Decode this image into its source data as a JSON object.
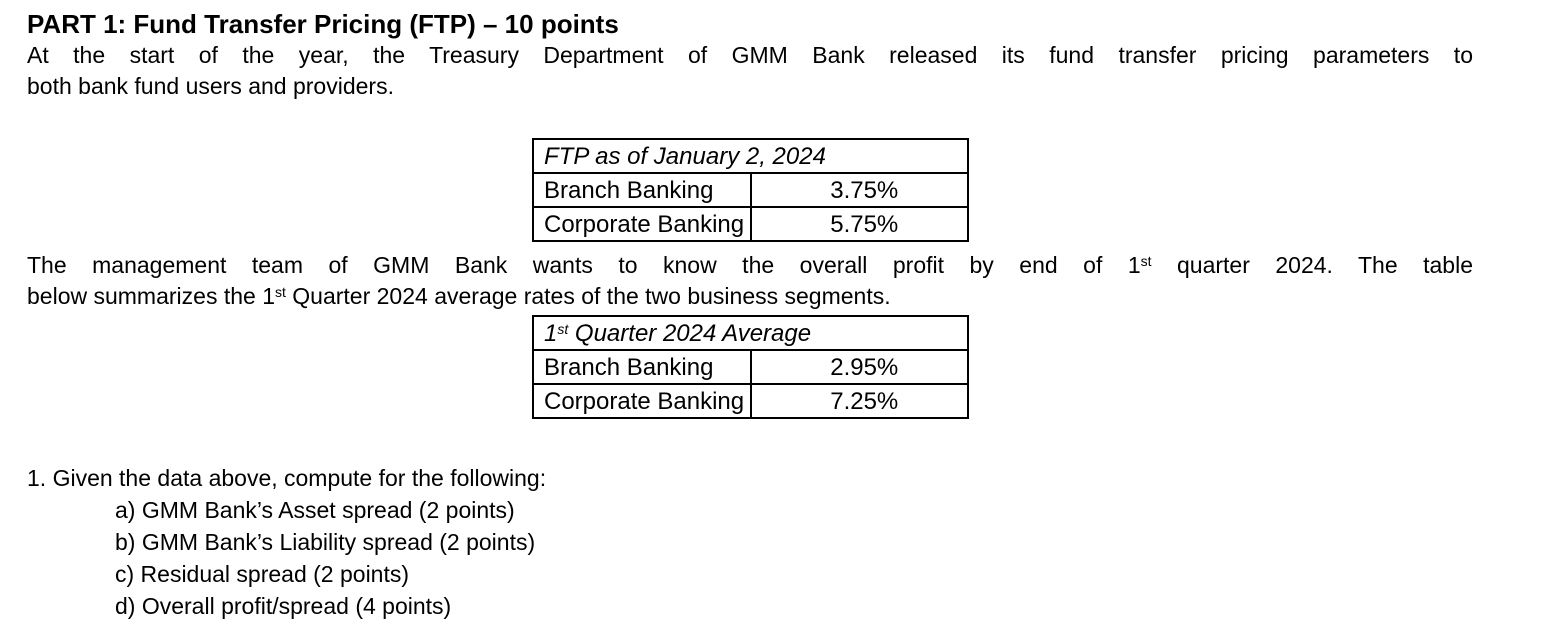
{
  "colors": {
    "text": "#000000",
    "background": "#ffffff",
    "table_border": "#000000"
  },
  "heading": "PART 1: Fund Transfer Pricing (FTP) – 10 points",
  "para1": {
    "line1": "At the start of the year, the Treasury Department of GMM Bank released its fund transfer pricing parameters to",
    "line2": "both bank fund users and providers."
  },
  "table1": {
    "title": "FTP as of January 2, 2024",
    "rows": [
      {
        "label": "Branch Banking",
        "value": "3.75%"
      },
      {
        "label": "Corporate Banking",
        "value": "5.75%"
      }
    ]
  },
  "para2": {
    "line1_pre": "The management team of GMM Bank wants to know the overall profit by end of 1",
    "line1_sup": "st",
    "line1_post": " quarter 2024. The table",
    "line2_pre": "below summarizes the 1",
    "line2_sup": "st",
    "line2_post": " Quarter 2024 average rates of the two business segments."
  },
  "table2": {
    "title_pre": "1",
    "title_sup": "st",
    "title_post": " Quarter 2024 Average",
    "rows": [
      {
        "label": "Branch Banking",
        "value": "2.95%"
      },
      {
        "label": "Corporate Banking",
        "value": "7.25%"
      }
    ]
  },
  "questions": {
    "intro": "1. Given the data above, compute for the following:",
    "items": [
      "a) GMM Bank’s Asset spread (2 points)",
      "b) GMM Bank’s Liability spread (2 points)",
      "c) Residual spread (2 points)",
      "d) Overall profit/spread (4 points)"
    ]
  }
}
